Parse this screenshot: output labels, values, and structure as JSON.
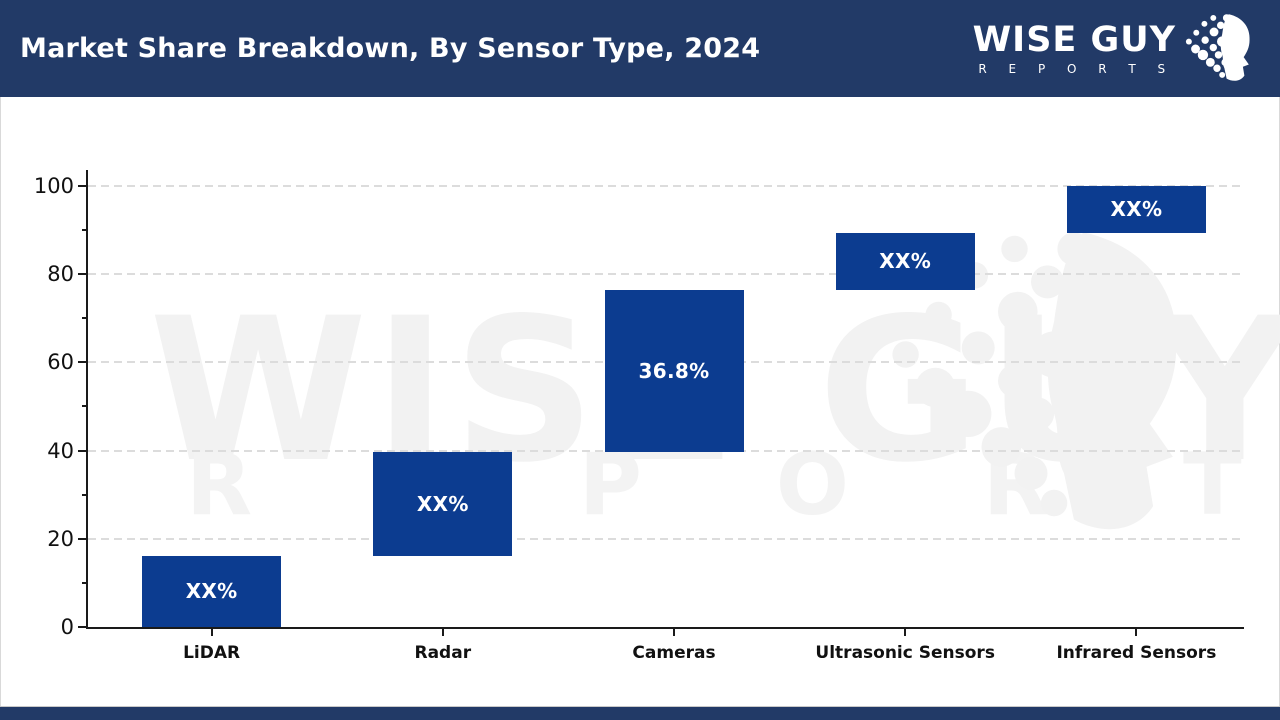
{
  "header": {
    "title": "Market Share Breakdown, By Sensor Type, 2024",
    "logo": {
      "line1": "WISE GUY",
      "line2": "R E P O R T S"
    }
  },
  "watermark": {
    "line1": "WISE GUY",
    "line2": "R E P O R T S"
  },
  "colors": {
    "header_bg": "#223a67",
    "footer_bg": "#223a67",
    "bar": "#0c3c90",
    "bar_label": "#ffffff",
    "gridline": "#dcdcdc",
    "axis": "#1a1a1a",
    "watermark": "#f2f2f2"
  },
  "chart_data": {
    "type": "bar",
    "subtype": "waterfall",
    "title": "Market Share Breakdown, By Sensor Type, 2024",
    "xlabel": "",
    "ylabel": "",
    "categories": [
      "LiDAR",
      "Radar",
      "Cameras",
      "Ultrasonic Sensors",
      "Infrared Sensors"
    ],
    "bars": [
      {
        "category": "LiDAR",
        "start": 0,
        "end": 16.1,
        "label": "XX%"
      },
      {
        "category": "Radar",
        "start": 16.1,
        "end": 39.7,
        "label": "XX%"
      },
      {
        "category": "Cameras",
        "start": 39.7,
        "end": 76.5,
        "label": "36.8%"
      },
      {
        "category": "Ultrasonic Sensors",
        "start": 76.5,
        "end": 89.3,
        "label": "XX%"
      },
      {
        "category": "Infrared Sensors",
        "start": 89.3,
        "end": 100,
        "label": "XX%"
      }
    ],
    "yticks": [
      0,
      20,
      40,
      60,
      80,
      100
    ],
    "yticks_minor": [
      10,
      30,
      50,
      70,
      90
    ],
    "ylim": [
      0,
      103.6
    ],
    "grid": "dashed-horizontal",
    "legend": "none"
  }
}
